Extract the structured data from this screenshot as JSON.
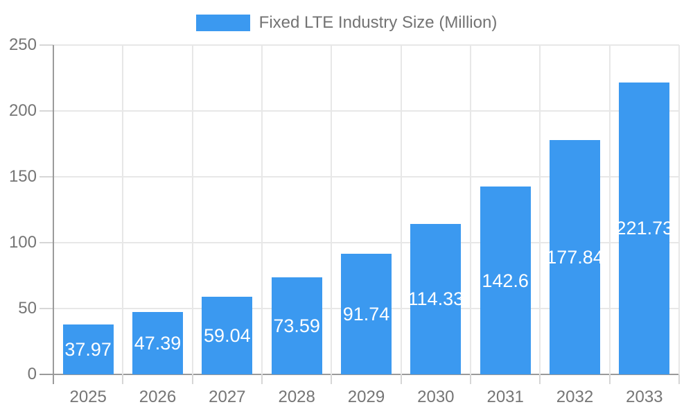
{
  "chart_data": {
    "type": "bar",
    "title": "",
    "legend_label": "Fixed LTE Industry Size (Million)",
    "legend_position": "top",
    "categories": [
      "2025",
      "2026",
      "2027",
      "2028",
      "2029",
      "2030",
      "2031",
      "2032",
      "2033"
    ],
    "series": [
      {
        "name": "Fixed LTE Industry Size (Million)",
        "values": [
          37.97,
          47.39,
          59.04,
          73.59,
          91.74,
          114.33,
          142.6,
          177.84,
          221.73
        ],
        "value_labels": [
          "37.97",
          "47.39",
          "59.04",
          "73.59",
          "91.74",
          "114.33",
          "142.6",
          "177.84",
          "221.73"
        ]
      }
    ],
    "xlabel": "",
    "ylabel": "",
    "ylim": [
      0,
      250
    ],
    "ytick_values": [
      0,
      50,
      100,
      150,
      200,
      250
    ],
    "ytick_labels": [
      "0",
      "50",
      "100",
      "150",
      "200",
      "250"
    ],
    "grid": "on",
    "colors": {
      "bar": "#3B99F0",
      "value_label_text": "#FFFFFF",
      "axis_text": "#757575",
      "grid_line": "#E7E7E7",
      "axis_line": "#9A9A9A",
      "tick_mark": "#D6D6D6",
      "background": "#FFFFFF"
    }
  }
}
